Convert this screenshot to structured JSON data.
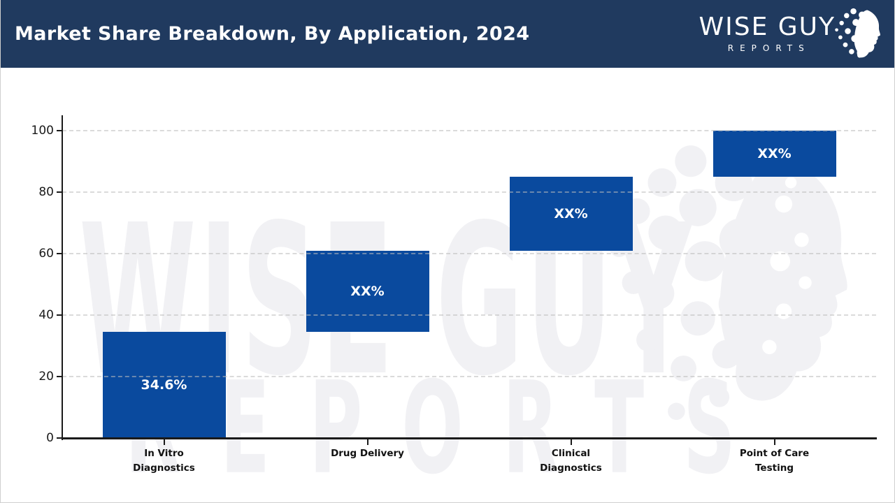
{
  "header": {
    "title": "Market Share Breakdown, By Application, 2024",
    "logo": {
      "wordmark": "WISE GUY",
      "subtext": "REPORTS"
    }
  },
  "watermark": {
    "line1": "WISE GUY",
    "line2": "REPORTS"
  },
  "colors": {
    "header_bg": "#203a5f",
    "bar": "#0a4a9e",
    "bar_label": "#ffffff",
    "gridline": "#dadada",
    "axis": "#1a1a1a",
    "watermark": "#f1f1f4"
  },
  "chart_data": {
    "type": "bar",
    "variant": "waterfall-stacked",
    "title": "Market Share Breakdown, By Application, 2024",
    "categories": [
      "In Vitro\nDiagnostics",
      "Drug Delivery",
      "Clinical\nDiagnostics",
      "Point of Care\nTesting"
    ],
    "segments": [
      {
        "category": "In Vitro Diagnostics",
        "start": 0,
        "end": 34.6,
        "label": "34.6%"
      },
      {
        "category": "Drug Delivery",
        "start": 34.6,
        "end": 61,
        "label": "XX%"
      },
      {
        "category": "Clinical Diagnostics",
        "start": 61,
        "end": 85,
        "label": "XX%"
      },
      {
        "category": "Point of Care Testing",
        "start": 85,
        "end": 100,
        "label": "XX%"
      }
    ],
    "ylabel": "",
    "xlabel": "",
    "ylim": [
      0,
      100
    ],
    "yticks": [
      0,
      20,
      40,
      60,
      80,
      100
    ],
    "grid": "dashed-horizontal",
    "legend": null
  }
}
